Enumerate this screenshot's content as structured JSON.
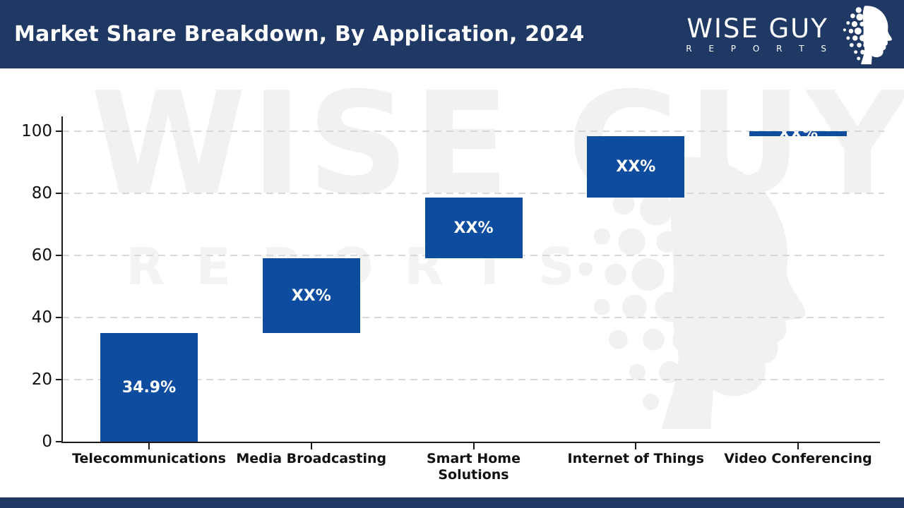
{
  "header": {
    "title": "Market Share Breakdown, By Application, 2024",
    "logo": {
      "line1": "WISE GUY",
      "line2": "R E P O R T S"
    }
  },
  "watermark": {
    "line1": "WISE GUY",
    "line2": "REPORTS"
  },
  "colors": {
    "header_navy": "#203864",
    "bar_blue": "#0d4c9e",
    "grid_gray": "#d9d9d9",
    "axis_black": "#1a1a1a",
    "watermark_gray": "#f1f1f1",
    "background": "#ffffff",
    "bar_label_white": "#ffffff"
  },
  "chart_data": {
    "type": "bar",
    "subtype": "waterfall",
    "title": "Market Share Breakdown, By Application, 2024",
    "xlabel": "",
    "ylabel": "",
    "ylim": [
      0,
      104.8
    ],
    "yticks": [
      0,
      20,
      40,
      60,
      80,
      100
    ],
    "grid": "horizontal dashed",
    "legend": "none",
    "categories": [
      {
        "label": "Telecommunications",
        "lines": [
          "Telecommunications"
        ]
      },
      {
        "label": "Media Broadcasting",
        "lines": [
          "Media Broadcasting"
        ]
      },
      {
        "label": "Smart Home Solutions",
        "lines": [
          "Smart Home",
          "Solutions"
        ]
      },
      {
        "label": "Internet of Things",
        "lines": [
          "Internet of Things"
        ]
      },
      {
        "label": "Video Conferencing",
        "lines": [
          "Video Conferencing"
        ]
      }
    ],
    "segments": [
      {
        "category": "Telecommunications",
        "start": 0,
        "end": 34.9,
        "value_label": "34.9%"
      },
      {
        "category": "Media Broadcasting",
        "start": 34.9,
        "end": 59.0,
        "value_label": "XX%"
      },
      {
        "category": "Smart Home Solutions",
        "start": 59.0,
        "end": 78.7,
        "value_label": "XX%"
      },
      {
        "category": "Internet of Things",
        "start": 78.7,
        "end": 98.4,
        "value_label": "XX%"
      },
      {
        "category": "Video Conferencing",
        "start": 98.4,
        "end": 100.0,
        "value_label": "XX%"
      }
    ]
  }
}
